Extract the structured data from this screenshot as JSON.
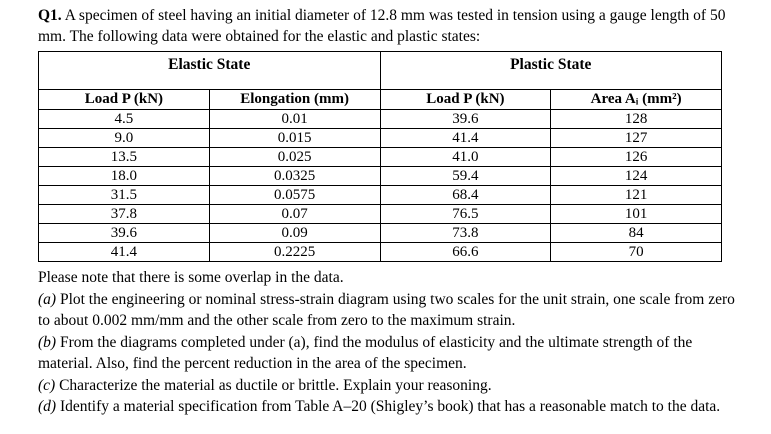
{
  "question": {
    "label": "Q1.",
    "intro": " A specimen of steel having an initial diameter of 12.8 mm was tested in tension using a gauge length of 50 mm. The following data were obtained for the elastic and plastic states:"
  },
  "table": {
    "group_headers": [
      "Elastic State",
      "Plastic State"
    ],
    "column_headers": [
      "Load P (kN)",
      "Elongation (mm)",
      "Load P (kN)",
      "Area Aᵢ (mm²)"
    ],
    "rows": [
      [
        "4.5",
        "0.01",
        "39.6",
        "128"
      ],
      [
        "9.0",
        "0.015",
        "41.4",
        "127"
      ],
      [
        "13.5",
        "0.025",
        "41.0",
        "126"
      ],
      [
        "18.0",
        "0.0325",
        "59.4",
        "124"
      ],
      [
        "31.5",
        "0.0575",
        "68.4",
        "121"
      ],
      [
        "37.8",
        "0.07",
        "76.5",
        "101"
      ],
      [
        "39.6",
        "0.09",
        "73.8",
        "84"
      ],
      [
        "41.4",
        "0.2225",
        "66.6",
        "70"
      ]
    ]
  },
  "notes": [
    {
      "label": "",
      "text": "Please note that there is some overlap in the data."
    },
    {
      "label": "(a)",
      "text": "Plot the engineering or nominal stress-strain diagram using two scales for the unit strain, one scale from zero to about 0.002 mm/mm and the other scale from zero to the maximum strain."
    },
    {
      "label": "(b)",
      "text": "From the diagrams completed under (a), find the modulus of elasticity and the ultimate strength of the material. Also, find the percent reduction in the area of the specimen."
    },
    {
      "label": "(c)",
      "text": "Characterize the material as ductile or brittle. Explain your reasoning."
    },
    {
      "label": "(d)",
      "text": "Identify a material specification from Table A–20 (Shigley’s book) that has a reasonable match to the data."
    }
  ]
}
